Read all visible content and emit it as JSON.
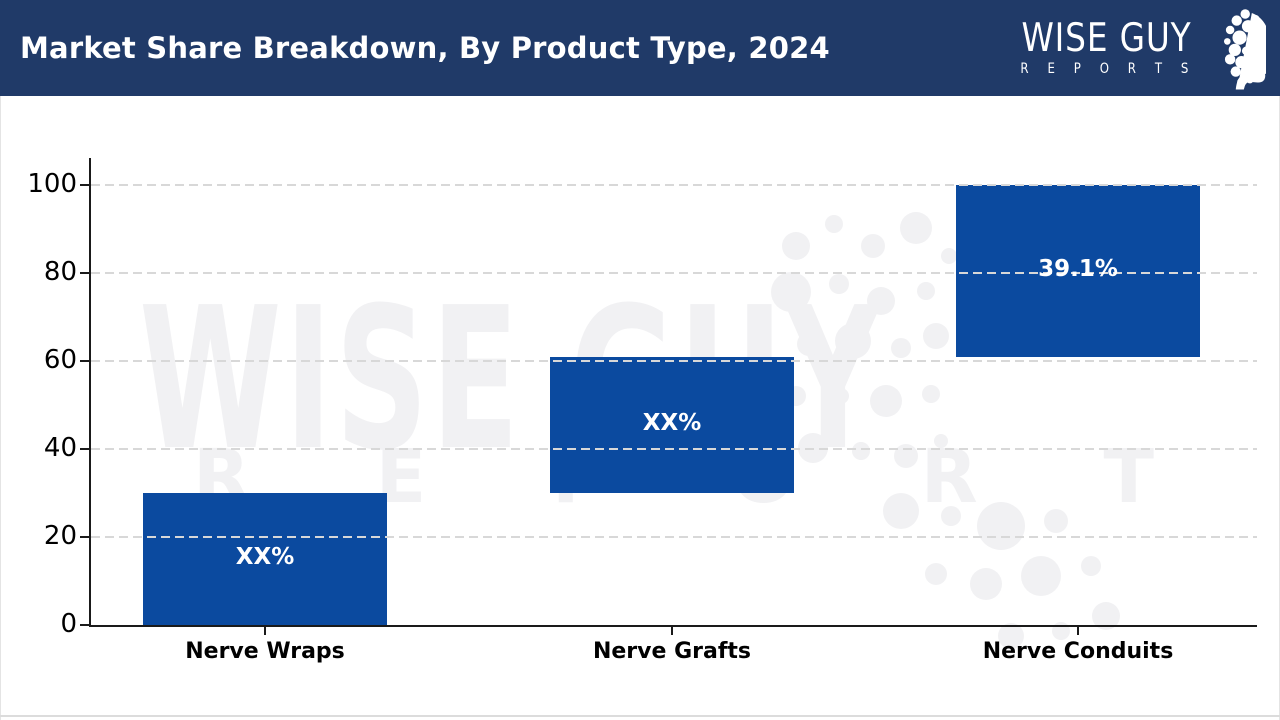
{
  "header": {
    "title": "Market Share Breakdown, By Product Type, 2024",
    "logo": {
      "wordmark": "WISE GUY",
      "tagline": "R E P O R T S"
    }
  },
  "watermark": {
    "line1": "WISE GUY",
    "line2": "R E P O R T S"
  },
  "colors": {
    "header_bg": "#203A68",
    "bar": "#0B4A9F",
    "bar_label": "#FFFFFF",
    "grid": "#D8D8D8",
    "axis": "#1A1A1A",
    "watermark": "#F1F1F3",
    "title_text": "#FFFFFF"
  },
  "chart_data": {
    "type": "bar",
    "subtype": "floating-waterfall",
    "title": "Market Share Breakdown, By Product Type, 2024",
    "categories": [
      "Nerve Wraps",
      "Nerve Grafts",
      "Nerve Conduits"
    ],
    "bars": [
      {
        "category": "Nerve Wraps",
        "start": 0,
        "end": 30,
        "label": "XX%"
      },
      {
        "category": "Nerve Grafts",
        "start": 30,
        "end": 60.9,
        "label": "XX%"
      },
      {
        "category": "Nerve Conduits",
        "start": 60.9,
        "end": 100,
        "label": "39.1%"
      }
    ],
    "xlabel": "",
    "ylabel": "",
    "yticks": [
      0,
      20,
      40,
      60,
      80,
      100
    ],
    "ylim": [
      0,
      105
    ],
    "grid": "horizontal-dashed",
    "legend": "none"
  }
}
